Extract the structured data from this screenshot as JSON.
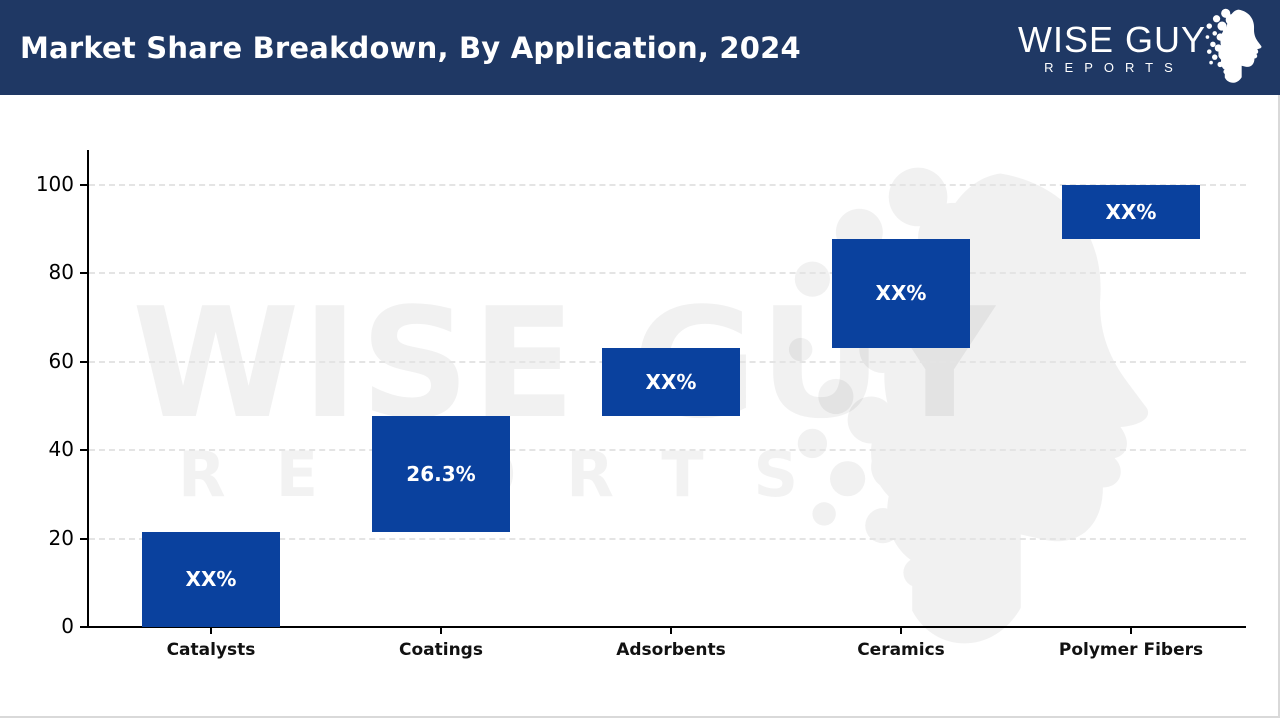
{
  "header": {
    "title": "Market Share Breakdown, By Application, 2024",
    "logo": {
      "name": "WISE GUY",
      "tagline": "REPORTS"
    }
  },
  "watermark": {
    "line1": "WISE GUY",
    "line2": "REPORTS"
  },
  "colors": {
    "header_bg": "#1f3864",
    "bar": "#0a419e",
    "grid": "#e4e4e4",
    "axis": "#000000",
    "bar_label": "#ffffff"
  },
  "chart_data": {
    "type": "bar",
    "subtype": "waterfall",
    "title": "Market Share Breakdown, By Application, 2024",
    "categories": [
      "Catalysts",
      "Coatings",
      "Adsorbents",
      "Ceramics",
      "Polymer Fibers"
    ],
    "segments": [
      {
        "category": "Catalysts",
        "start": 0,
        "end": 21.5,
        "value": 21.5,
        "label": "XX%"
      },
      {
        "category": "Coatings",
        "start": 21.5,
        "end": 47.8,
        "value": 26.3,
        "label": "26.3%"
      },
      {
        "category": "Adsorbents",
        "start": 47.8,
        "end": 63.2,
        "value": 15.4,
        "label": "XX%"
      },
      {
        "category": "Ceramics",
        "start": 63.2,
        "end": 87.8,
        "value": 24.6,
        "label": "XX%"
      },
      {
        "category": "Polymer Fibers",
        "start": 87.8,
        "end": 100,
        "value": 12.2,
        "label": "XX%"
      }
    ],
    "xlabel": "",
    "ylabel": "",
    "ylim": [
      0,
      100
    ],
    "yticks": [
      0,
      20,
      40,
      60,
      80,
      100
    ],
    "grid": "horizontal-dashed",
    "legend": null
  }
}
